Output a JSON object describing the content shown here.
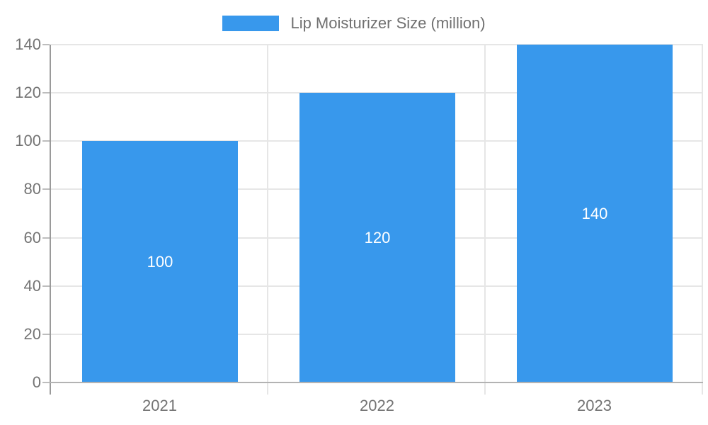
{
  "chart_data": {
    "type": "bar",
    "title": "Lip Moisturizer Size (million)",
    "legend": {
      "label": "Lip Moisturizer Size (million)",
      "position": "top"
    },
    "categories": [
      "2021",
      "2022",
      "2023"
    ],
    "series": [
      {
        "name": "Lip Moisturizer Size (million)",
        "values": [
          100,
          120,
          140
        ]
      }
    ],
    "bar_value_labels": [
      "100",
      "120",
      "140"
    ],
    "xlabel": "",
    "ylabel": "",
    "ylim": [
      0,
      140
    ],
    "yticks": [
      0,
      20,
      40,
      60,
      80,
      100,
      120,
      140
    ],
    "grid": true,
    "colors": {
      "bar": "#3898ec",
      "grid": "#e6e6e6",
      "y_axis_line": "#9a9a9a",
      "x_axis_line": "#b3b3b3",
      "tick": "#bdbdbd",
      "tick_label_text": "#737373",
      "legend_text": "#707070",
      "bar_label_text": "#ffffff",
      "background": "#ffffff"
    }
  }
}
